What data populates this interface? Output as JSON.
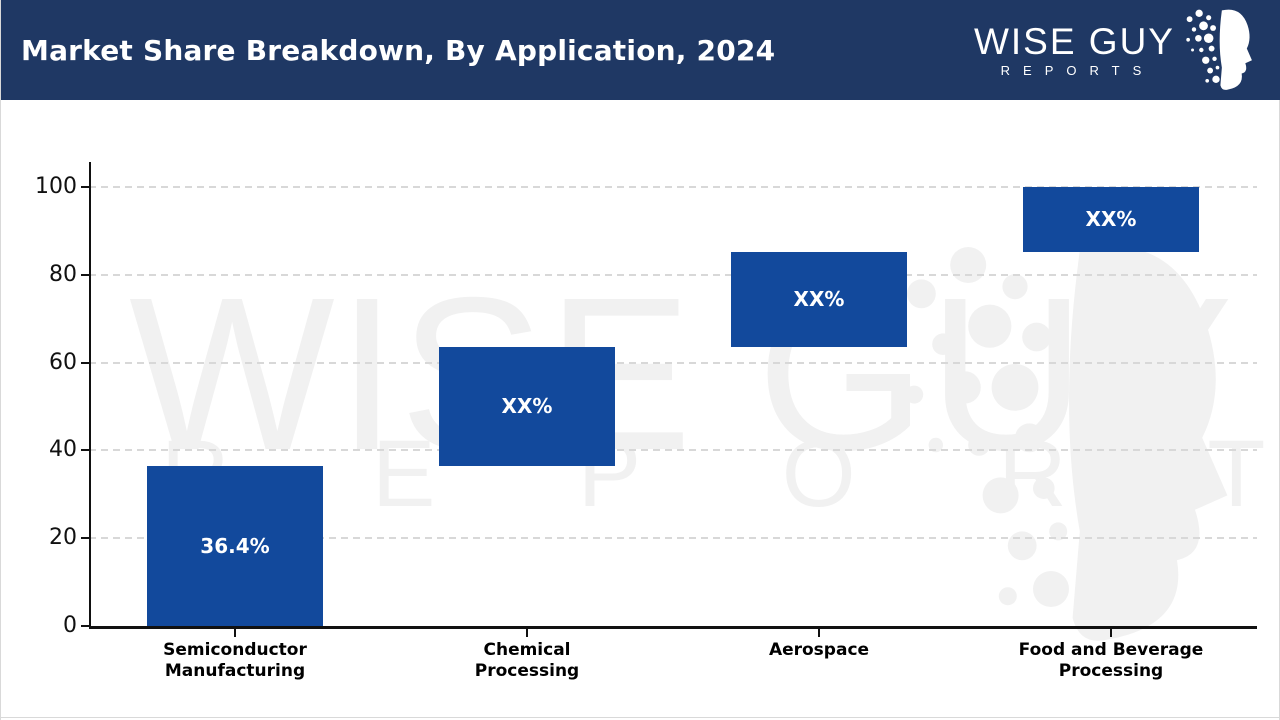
{
  "header": {
    "title": "Market Share Breakdown, By Application, 2024",
    "logo": {
      "line1": "WISE GUY",
      "line2": "REPORTS"
    }
  },
  "watermark": {
    "line1": "WISE GUY",
    "line2": "R E P O R T S"
  },
  "chart_data": {
    "type": "bar",
    "subtype": "floating-segment-bars",
    "title": "Market Share Breakdown, By Application, 2024",
    "xlabel": "",
    "ylabel": "",
    "categories": [
      [
        "Semiconductor",
        "Manufacturing"
      ],
      [
        "Chemical",
        "Processing"
      ],
      [
        "Aerospace"
      ],
      [
        "Food and Beverage",
        "Processing"
      ]
    ],
    "segments": [
      {
        "start": 0,
        "end": 36.4,
        "label": "36.4%"
      },
      {
        "start": 36.4,
        "end": 63.6,
        "label": "XX%"
      },
      {
        "start": 63.6,
        "end": 85.2,
        "label": "XX%"
      },
      {
        "start": 85.2,
        "end": 100,
        "label": "XX%"
      }
    ],
    "yticks": [
      0,
      20,
      40,
      60,
      80,
      100
    ],
    "ylim": [
      0,
      105
    ],
    "grid": "horizontal-dashed",
    "legend_position": "none"
  },
  "colors": {
    "header_bg": "#1f3864",
    "bar": "#12499c",
    "grid": "#d8d8d8",
    "axis": "#111111",
    "watermark": "#f1f1f1",
    "value_label": "#ffffff"
  }
}
